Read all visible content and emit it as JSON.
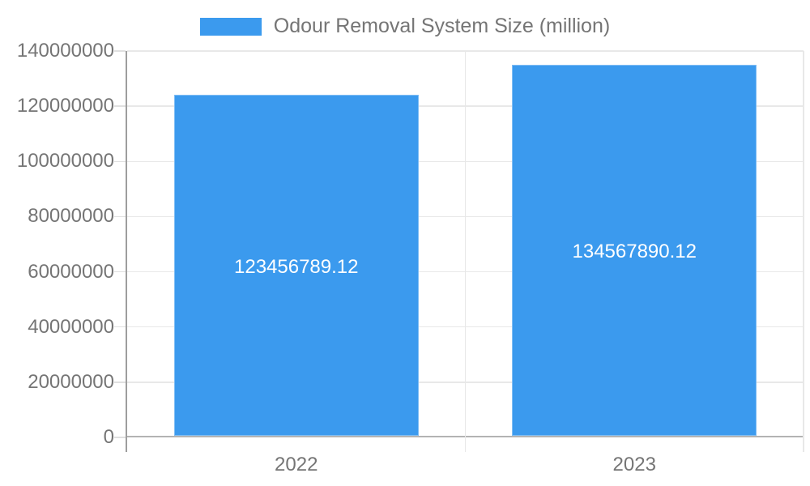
{
  "legend": {
    "label": "Odour Removal System Size (million)"
  },
  "chart_data": {
    "type": "bar",
    "title": "",
    "categories": [
      "2022",
      "2023"
    ],
    "series": [
      {
        "name": "Odour Removal System Size (million)",
        "values": [
          123456789.12,
          134567890.12
        ]
      }
    ],
    "value_labels": [
      "123456789.12",
      "134567890.12"
    ],
    "ylim": [
      0,
      140000000
    ],
    "yticks": [
      0,
      20000000,
      40000000,
      60000000,
      80000000,
      100000000,
      120000000,
      140000000
    ],
    "ytick_labels": [
      "0",
      "20000000",
      "40000000",
      "60000000",
      "80000000",
      "100000000",
      "120000000",
      "140000000"
    ],
    "grid": true,
    "legend_position": "top",
    "colors": {
      "bar": "#3b9aee",
      "bar_label": "#ffffff",
      "axis_text": "#757575",
      "gridline": "#e8e8e8",
      "axis_line": "#9e9e9e"
    }
  }
}
